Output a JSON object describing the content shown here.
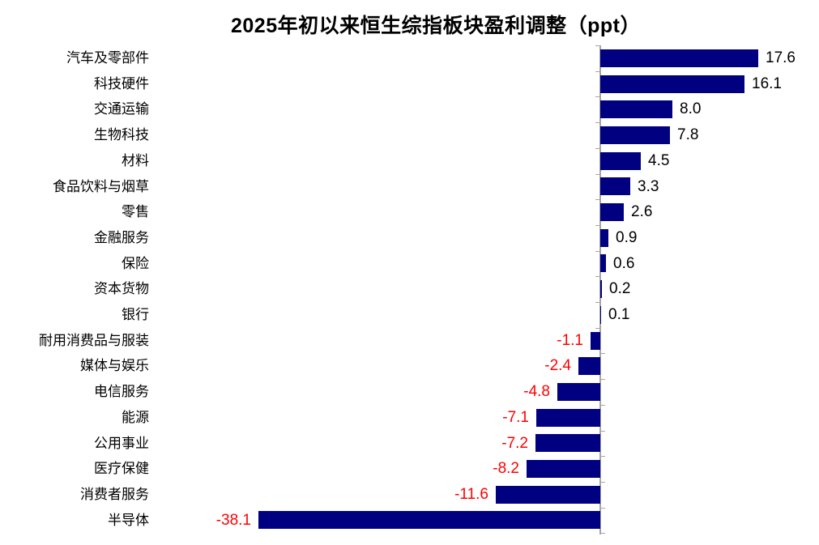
{
  "chart_data": {
    "type": "bar",
    "orientation": "horizontal",
    "title": "2025年初以来恒生综指板块盈利调整（ppt）",
    "unit": "ppt",
    "categories": [
      "汽车及零部件",
      "科技硬件",
      "交通运输",
      "生物科技",
      "材料",
      "食品饮料与烟草",
      "零售",
      "金融服务",
      "保险",
      "资本货物",
      "银行",
      "耐用消费品与服装",
      "媒体与娱乐",
      "电信服务",
      "能源",
      "公用事业",
      "医疗保健",
      "消费者服务",
      "半导体"
    ],
    "values": [
      17.6,
      16.1,
      8.0,
      7.8,
      4.5,
      3.3,
      2.6,
      0.9,
      0.6,
      0.2,
      0.1,
      -1.1,
      -2.4,
      -4.8,
      -7.1,
      -7.2,
      -8.2,
      -11.6,
      -38.1
    ],
    "value_labels": [
      "17.6",
      "16.1",
      "8.0",
      "7.8",
      "4.5",
      "3.3",
      "2.6",
      "0.9",
      "0.6",
      "0.2",
      "0.1",
      "-1.1",
      "-2.4",
      "-4.8",
      "-7.1",
      "-7.2",
      "-8.2",
      "-11.6",
      "-38.1"
    ],
    "xlim": [
      -38.1,
      17.6
    ],
    "grid": false,
    "legend": false,
    "bar_color": "#000080",
    "positive_value_color": "#000000",
    "negative_value_color": "#FF0000",
    "axis_color": "#A6A6A6",
    "title_color": "#000000"
  }
}
